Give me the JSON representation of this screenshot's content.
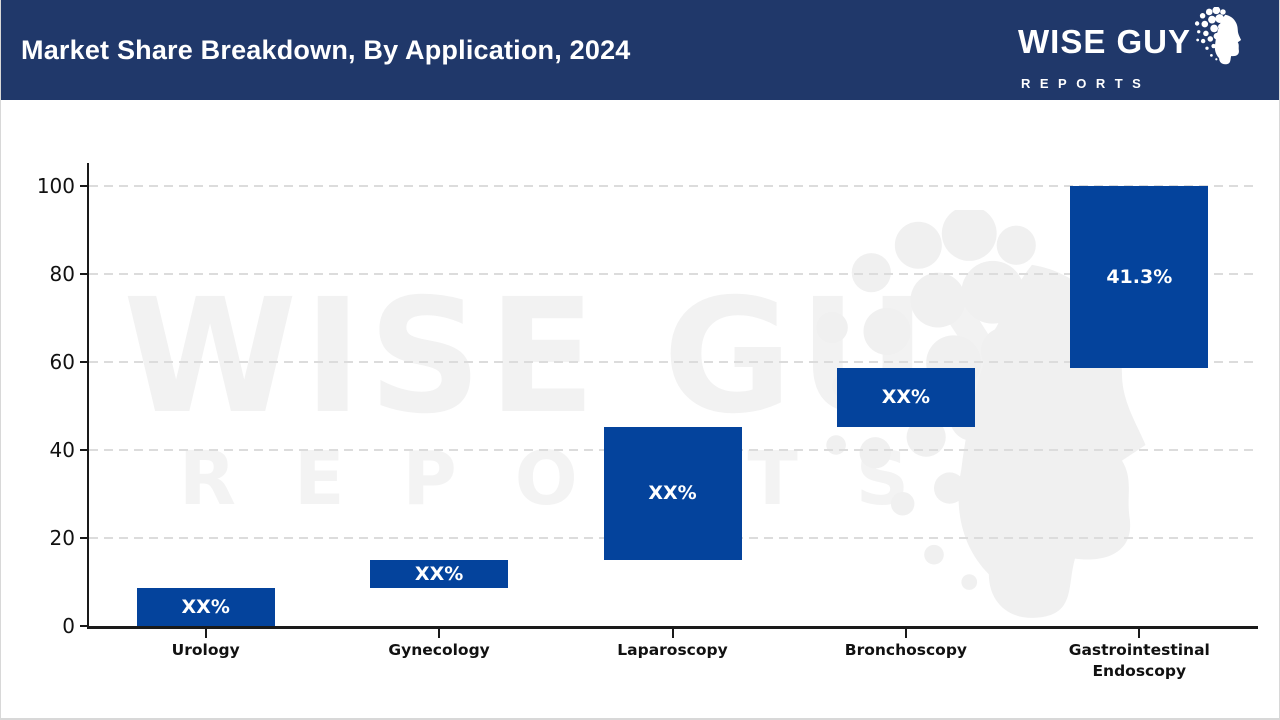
{
  "header": {
    "title": "Market Share Breakdown, By Application, 2024",
    "logo": {
      "name": "WISE GUY",
      "sub": "REPORTS"
    }
  },
  "watermark": {
    "line1": "WISE GUY",
    "line2": "REPORTS"
  },
  "chart_data": {
    "type": "bar",
    "subtype": "waterfall",
    "title": "Market Share Breakdown, By Application, 2024",
    "categories": [
      "Urology",
      "Gynecology",
      "Laparoscopy",
      "Bronchoscopy",
      "Gastrointestinal\nEndoscopy"
    ],
    "bars": [
      {
        "category": "Urology",
        "start": 0,
        "end": 8.6,
        "label": "XX%"
      },
      {
        "category": "Gynecology",
        "start": 8.6,
        "end": 15.0,
        "label": "XX%"
      },
      {
        "category": "Laparoscopy",
        "start": 15.0,
        "end": 45.3,
        "label": "XX%"
      },
      {
        "category": "Bronchoscopy",
        "start": 45.3,
        "end": 58.7,
        "label": "XX%"
      },
      {
        "category": "Gastrointestinal\nEndoscopy",
        "start": 58.7,
        "end": 100,
        "label": "41.3%"
      }
    ],
    "ylim": [
      0,
      100
    ],
    "yticks": [
      0,
      20,
      40,
      60,
      80,
      100
    ],
    "grid": "horizontal-dashed",
    "legend": "none",
    "xlabel": "",
    "ylabel": ""
  },
  "colors": {
    "header_bg": "#20386a",
    "bar": "#04439c",
    "bar_label": "#ffffff",
    "axis": "#1a1a1a",
    "grid": "#dcdcdc",
    "watermark": "#f2f2f2"
  }
}
